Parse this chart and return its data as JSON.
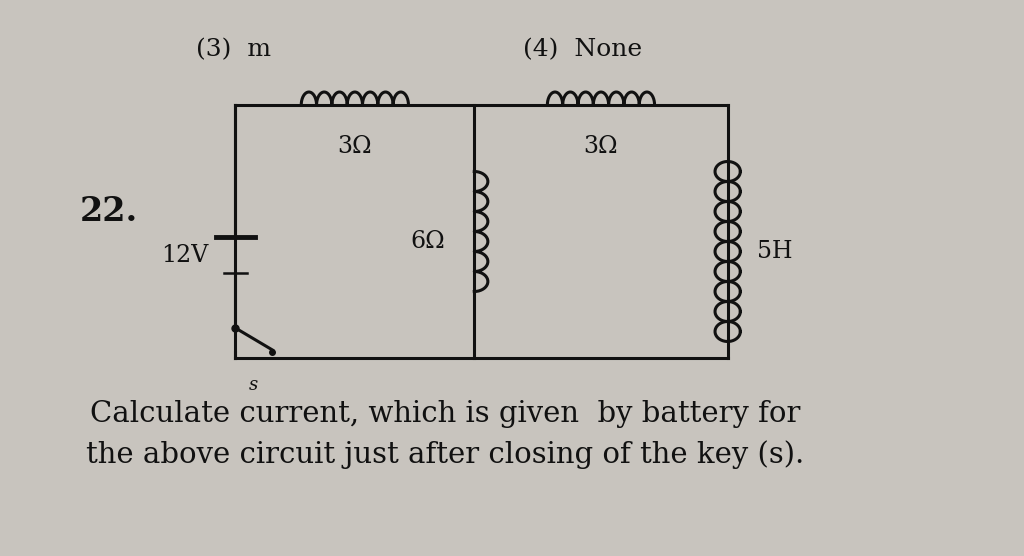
{
  "bg_color": "#c8c4be",
  "text_color": "#111111",
  "title_number": "22.",
  "option3": "(3)  m",
  "option4": "(4)  None",
  "question_line1": "Calculate current, which is given  by battery for",
  "question_line2": "the above circuit just after closing of the key (s).",
  "circuit": {
    "battery_label": "12V",
    "switch_label": "s",
    "r1_label": "3Ω",
    "r2_label": "3Ω",
    "r3_label": "6Ω",
    "ind_label": "5H"
  },
  "font_size_labels": 17,
  "font_size_question": 21,
  "font_size_option": 18,
  "font_size_number": 24
}
